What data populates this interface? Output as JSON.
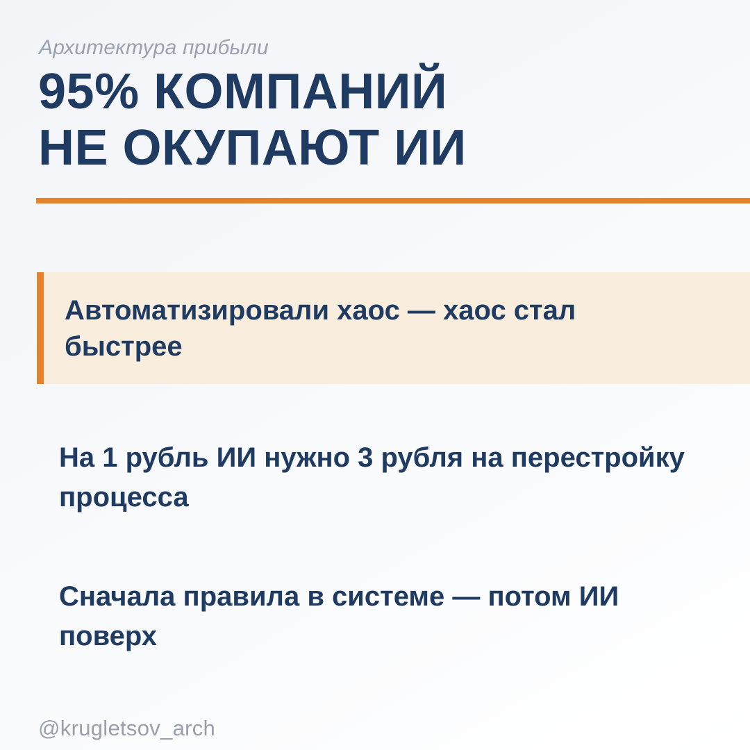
{
  "page": {
    "eyebrow": "Архитектура прибыли",
    "title": "95% КОМПАНИЙ\nНЕ ОКУПАЮТ ИИ",
    "callout": "Автоматизировали хаос — хаос стал\nбыстрее",
    "points": [
      "На 1 рубль ИИ нужно 3 рубля на перестройку\nпроцесса",
      "Сначала правила в системе — потом ИИ\nповерх"
    ],
    "footer_handle": "@krugletsov_arch"
  },
  "colors": {
    "heading_navy": "#1f3b62",
    "accent_orange": "#e5822c",
    "callout_background": "#f9edde",
    "muted_gray": "#9aa2b1"
  }
}
